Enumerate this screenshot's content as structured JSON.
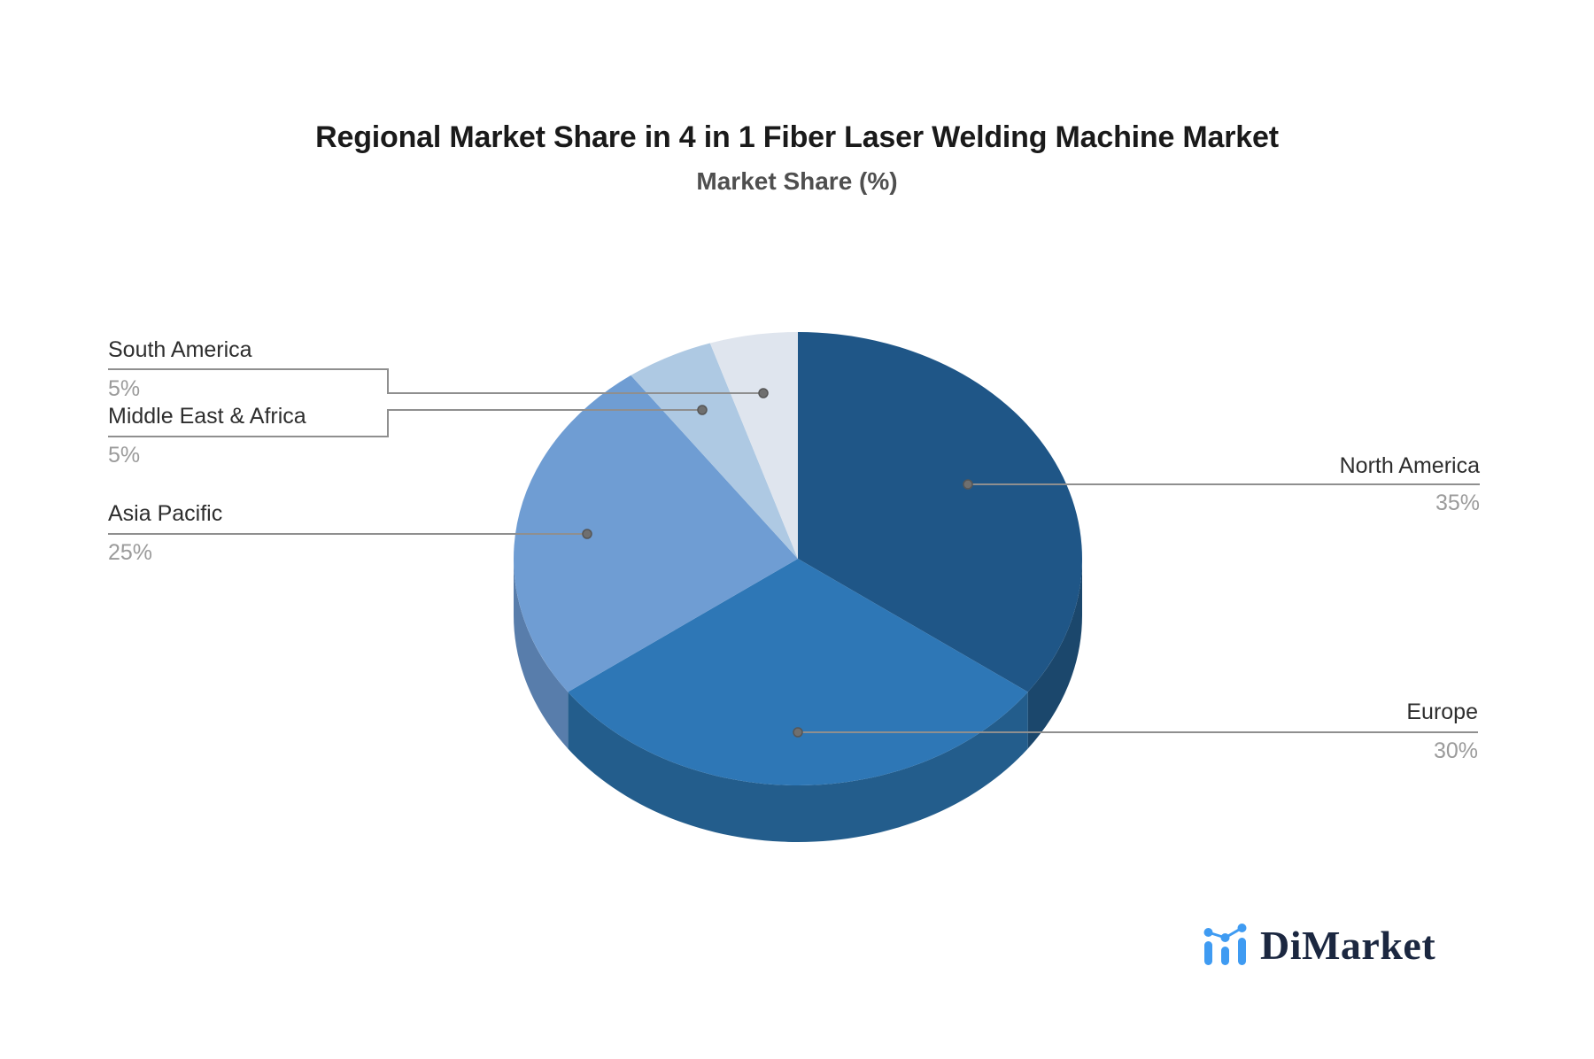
{
  "chart_data": {
    "type": "pie",
    "style": "pie-3d",
    "title": "Regional Market Share in 4 in 1 Fiber Laser Welding Machine Market",
    "subtitle": "Market Share (%)",
    "unit": "%",
    "direction": "clockwise",
    "start_angle_deg": 0,
    "legend": "none",
    "background": "#ffffff",
    "leader_line_color": "#8f8f8f",
    "anchor_dot_color": "#6f6f6f",
    "label_color": "#2e2e2e",
    "value_color": "#9b9b9b",
    "segments": [
      {
        "label": "North America",
        "value": 35,
        "value_label": "35%",
        "color": "#1f5687",
        "side_color": "#1b476c",
        "label_side": "right"
      },
      {
        "label": "Europe",
        "value": 30,
        "value_label": "30%",
        "color": "#2e77b6",
        "side_color": "#235d8c",
        "label_side": "right"
      },
      {
        "label": "Asia Pacific",
        "value": 25,
        "value_label": "25%",
        "color": "#6f9dd3",
        "side_color": "#587dab",
        "label_side": "left"
      },
      {
        "label": "Middle East & Africa",
        "value": 5,
        "value_label": "5%",
        "color": "#aec9e3",
        "label_side": "left"
      },
      {
        "label": "South America",
        "value": 5,
        "value_label": "5%",
        "color": "#dfe5ee",
        "label_side": "left"
      }
    ]
  },
  "branding": {
    "logo_text": "DiMarket",
    "logo_icon": "bar-chart-icon",
    "logo_icon_color": "#3f9bf2",
    "logo_text_color": "#1b2740"
  }
}
